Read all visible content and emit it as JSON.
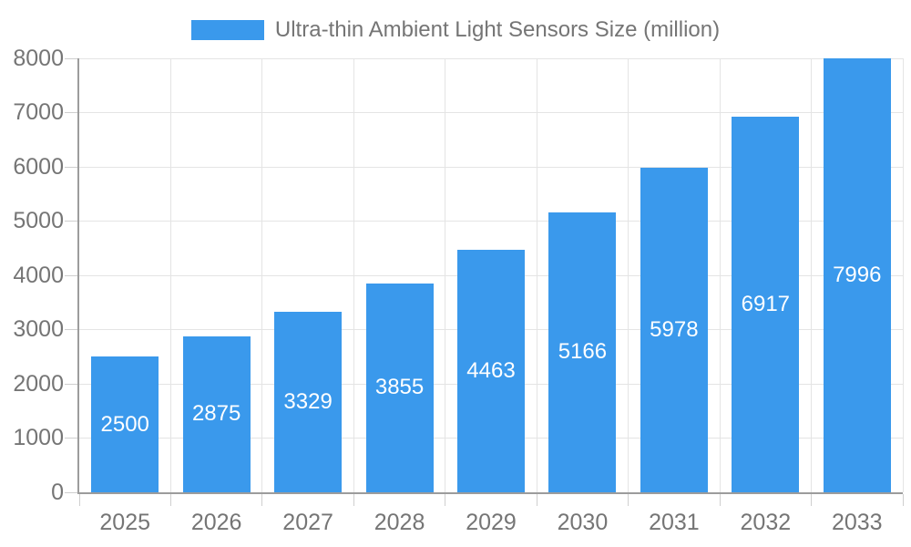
{
  "legend": {
    "swatch_color": "#3a99ec"
  },
  "chart_data": {
    "type": "bar",
    "title": "Ultra-thin Ambient Light Sensors Size (million)",
    "categories": [
      "2025",
      "2026",
      "2027",
      "2028",
      "2029",
      "2030",
      "2031",
      "2032",
      "2033"
    ],
    "values": [
      2500,
      2875,
      3329,
      3855,
      4463,
      5166,
      5978,
      6917,
      7996
    ],
    "series": [
      {
        "name": "Ultra-thin Ambient Light Sensors Size (million)",
        "values": [
          2500,
          2875,
          3329,
          3855,
          4463,
          5166,
          5978,
          6917,
          7996
        ]
      }
    ],
    "xlabel": "",
    "ylabel": "",
    "ylim": [
      0,
      8000
    ],
    "y_tick_step": 1000,
    "y_tick_labels": [
      "0",
      "1000",
      "2000",
      "3000",
      "4000",
      "5000",
      "6000",
      "7000",
      "8000"
    ],
    "grid": true,
    "legend_position": "top",
    "value_labels_shown": true,
    "colors": {
      "bar": "#3a99ec",
      "value_label": "#ffffff",
      "axis_text": "#757575",
      "gridline": "#e4e4e4",
      "tick": "#cfcfcf",
      "axis_line": "#9c9c9c"
    }
  }
}
